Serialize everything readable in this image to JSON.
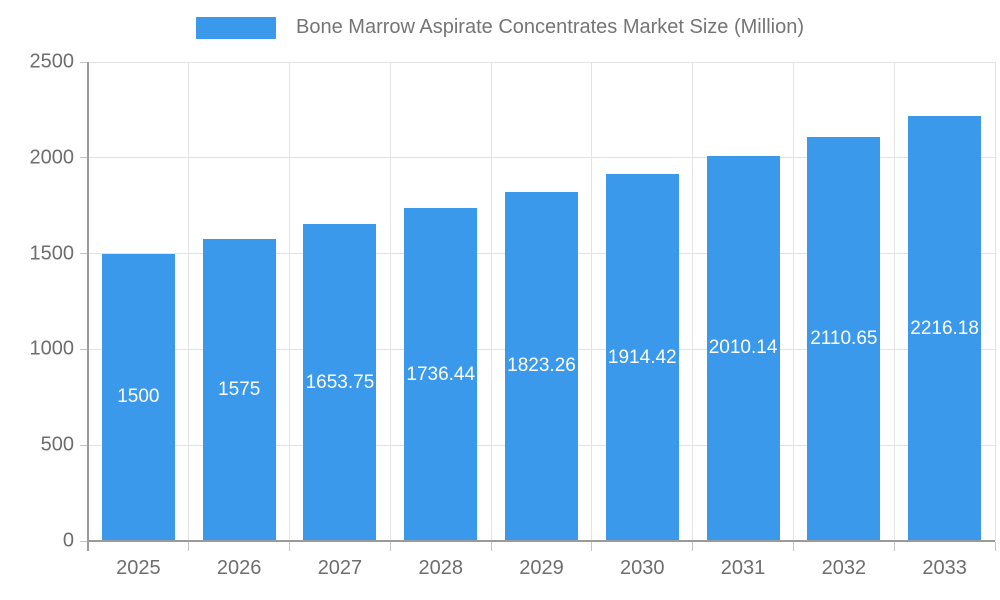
{
  "chart_data": {
    "type": "bar",
    "title": "Bone Marrow Aspirate Concentrates Market Size (Million)",
    "categories": [
      "2025",
      "2026",
      "2027",
      "2028",
      "2029",
      "2030",
      "2031",
      "2032",
      "2033"
    ],
    "values": [
      1500,
      1575,
      1653.75,
      1736.44,
      1823.26,
      1914.42,
      2010.14,
      2110.65,
      2216.18
    ],
    "ytick_labels": [
      "0",
      "500",
      "1000",
      "1500",
      "2000",
      "2500"
    ],
    "ylim": [
      0,
      2500
    ],
    "ytick_step": 500,
    "xlabel": "",
    "ylabel": "",
    "grid": true,
    "legend_position": "top",
    "bar_color": "#3B99EC",
    "bar_label_color": "#ffffff",
    "axis_text_color": "#6e6e6e",
    "legend_text_color": "#757575",
    "grid_color": "#e3e3e3",
    "axis_line_color": "#9a9a9a"
  }
}
